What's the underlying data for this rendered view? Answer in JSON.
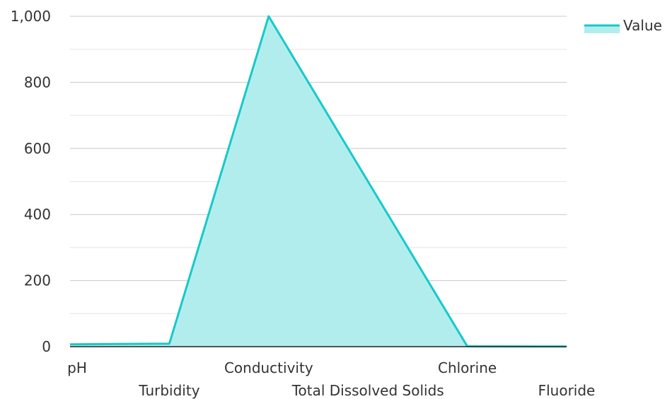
{
  "chart_data": {
    "type": "area",
    "categories": [
      "pH",
      "Turbidity",
      "Conductivity",
      "Total Dissolved Solids",
      "Chlorine",
      "Fluoride"
    ],
    "series": [
      {
        "name": "Value",
        "values": [
          7,
          9,
          1000,
          500,
          1,
          0.5
        ]
      }
    ],
    "ylim": [
      0,
      1000
    ],
    "yticks": [
      0,
      200,
      400,
      600,
      800,
      1000
    ],
    "ytick_labels": [
      "0",
      "200",
      "400",
      "600",
      "800",
      "1,000"
    ],
    "grid": true,
    "legend_position": "top-right",
    "colors": {
      "line": "#16c9c9",
      "fill": "#b2eded",
      "grid": "#d9d9d9",
      "axis": "#222222"
    }
  }
}
